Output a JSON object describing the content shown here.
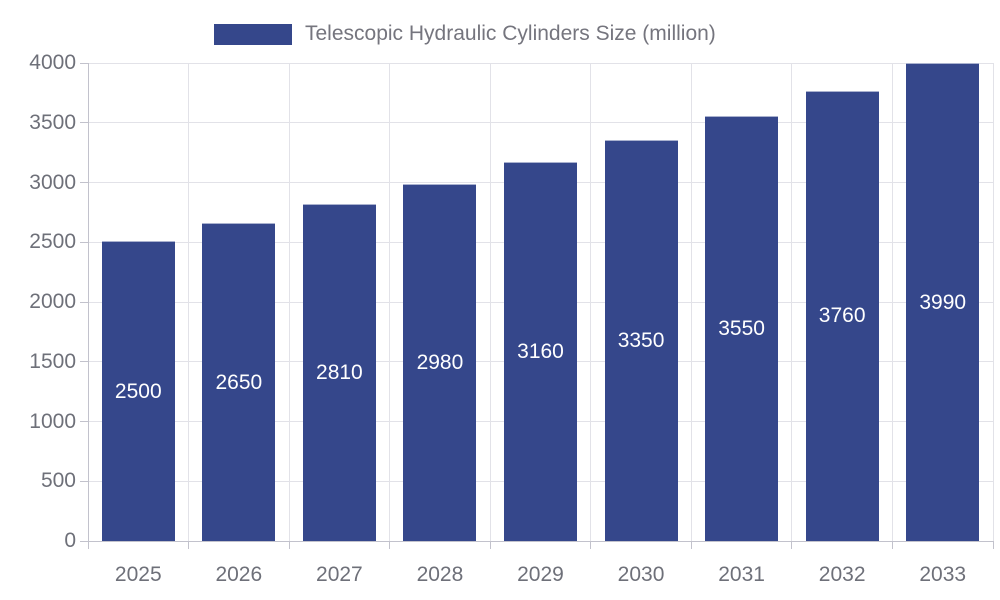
{
  "chart_data": {
    "type": "bar",
    "title": "Telescopic Hydraulic Cylinders Size (million)",
    "categories": [
      "2025",
      "2026",
      "2027",
      "2028",
      "2029",
      "2030",
      "2031",
      "2032",
      "2033"
    ],
    "values": [
      2500,
      2650,
      2810,
      2980,
      3160,
      3350,
      3550,
      3760,
      3990
    ],
    "xlabel": "",
    "ylabel": "",
    "ylim": [
      0,
      4000
    ],
    "yticks": [
      0,
      500,
      1000,
      1500,
      2000,
      2500,
      3000,
      3500,
      4000
    ],
    "grid": true,
    "legend_position": "top",
    "value_labels": "inside-center"
  },
  "legend": {
    "label": "Telescopic Hydraulic Cylinders Size (million)"
  },
  "colors": {
    "bar": "#35478b",
    "bar_edge": "#aab2cf",
    "grid": "#e2e2e8",
    "axis": "#c2c2cc",
    "axis_text": "#6e7079",
    "legend_text": "#75757e",
    "bar_label_text": "#ffffff",
    "background": "#ffffff"
  }
}
